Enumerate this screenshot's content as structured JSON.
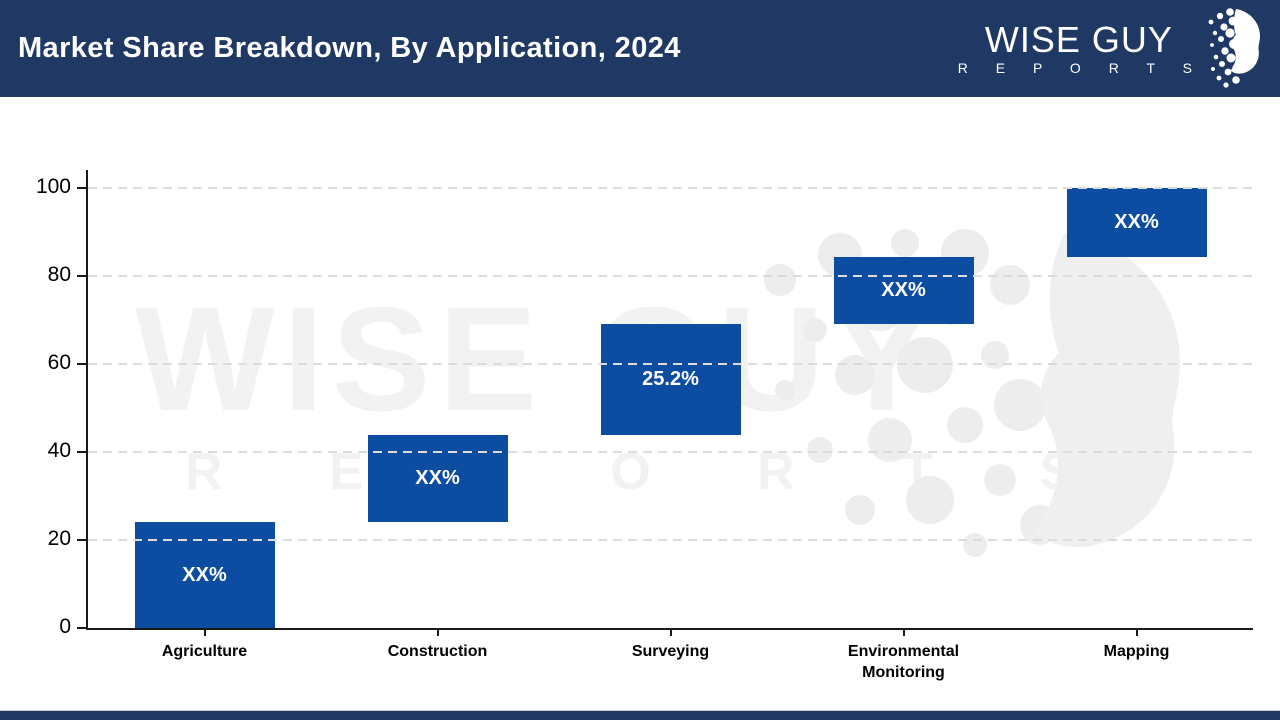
{
  "header": {
    "title": "Market Share Breakdown, By Application, 2024",
    "logo": {
      "line1": "WISE GUY",
      "line2": "R E P O R T S"
    }
  },
  "watermark": {
    "line1": "WISE GUY",
    "line2": "R E P O R T S"
  },
  "colors": {
    "header_bg": "#203864",
    "bar": "#0C4DA2",
    "bar_label": "#FFFFFF",
    "grid": "#DCDCDC",
    "axis": "#1A1A1A",
    "tick_text": "#000000",
    "watermark": "#F2F2F2",
    "footer_bar": "#203864"
  },
  "chart_data": {
    "type": "bar",
    "subtype": "floating-waterfall",
    "title": "Market Share Breakdown, By Application, 2024",
    "categories": [
      "Agriculture",
      "Construction",
      "Surveying",
      "Environmental Monitoring",
      "Mapping"
    ],
    "segments": [
      {
        "category": "Agriculture",
        "start": 0,
        "end": 24,
        "label": "XX%"
      },
      {
        "category": "Construction",
        "start": 24,
        "end": 43.8,
        "label": "XX%"
      },
      {
        "category": "Surveying",
        "start": 43.8,
        "end": 69,
        "label": "25.2%"
      },
      {
        "category": "Environmental Monitoring",
        "start": 69,
        "end": 84.2,
        "label": "XX%"
      },
      {
        "category": "Mapping",
        "start": 84.2,
        "end": 100,
        "label": "XX%"
      }
    ],
    "yticks": [
      0,
      20,
      40,
      60,
      80,
      100
    ],
    "ylim": [
      0,
      104
    ],
    "ylabel": "",
    "xlabel": "",
    "grid": "dashed-horizontal",
    "legend": "none"
  }
}
